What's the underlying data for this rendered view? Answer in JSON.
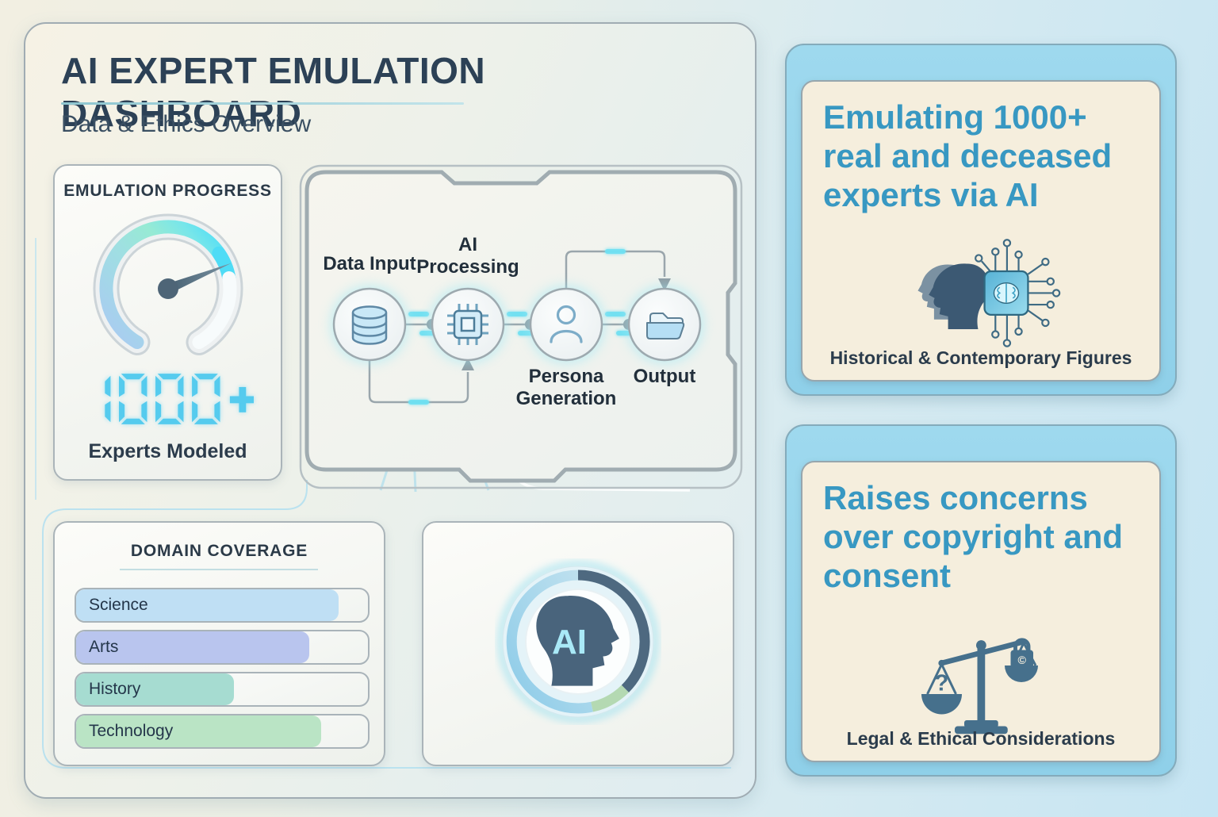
{
  "header": {
    "title": "AI EXPERT EMULATION DASHBOARD",
    "subtitle": "Data & Ethics Overview"
  },
  "progress_card": {
    "title": "EMULATION PROGRESS",
    "count": "1000+",
    "caption": "Experts Modeled"
  },
  "flow_card": {
    "nodes": [
      {
        "label": "Data Input",
        "icon": "database-icon"
      },
      {
        "label": "AI Processing",
        "icon": "chip-icon"
      },
      {
        "label": "Persona Generation",
        "icon": "person-icon"
      },
      {
        "label": "Output",
        "icon": "folder-icon"
      }
    ]
  },
  "domain_card": {
    "title": "DOMAIN COVERAGE",
    "bars": [
      {
        "label": "Science",
        "value_percent": 90,
        "color": "#bfdff4"
      },
      {
        "label": "Arts",
        "value_percent": 80,
        "color": "#b9c5ee"
      },
      {
        "label": "History",
        "value_percent": 54,
        "color": "#a6dcd1"
      },
      {
        "label": "Technology",
        "value_percent": 84,
        "color": "#bae4c5"
      }
    ]
  },
  "ai_badge": {
    "label": "AI"
  },
  "insight_cards": [
    {
      "heading": "Emulating 1000+ real and deceased experts via AI",
      "caption": "Historical & Contemporary Figures",
      "icon": "head-circuit-icon"
    },
    {
      "heading": "Raises concerns over copyright and consent",
      "caption": "Legal & Ethical Considerations",
      "icon": "scales-copyright-icon"
    }
  ],
  "colors": {
    "accent_teal_heading": "#3898c2",
    "digital_cyan": "#55cbee",
    "card_blue": "#93d3ea",
    "card_cream": "#f5eedd",
    "gauge_blue": "#a8ceef",
    "gauge_mint": "#97ead4",
    "gauge_cyan": "#4fdcf6",
    "slate_icon": "#4a657d"
  },
  "chart_data": [
    {
      "type": "gauge",
      "title": "EMULATION PROGRESS",
      "value_label": "1000+",
      "caption": "Experts Modeled",
      "fill_fraction": 0.8
    },
    {
      "type": "bar",
      "title": "DOMAIN COVERAGE",
      "orientation": "horizontal",
      "categories": [
        "Science",
        "Arts",
        "History",
        "Technology"
      ],
      "values": [
        90,
        80,
        54,
        84
      ],
      "unit": "percent of track width (estimated)"
    }
  ]
}
